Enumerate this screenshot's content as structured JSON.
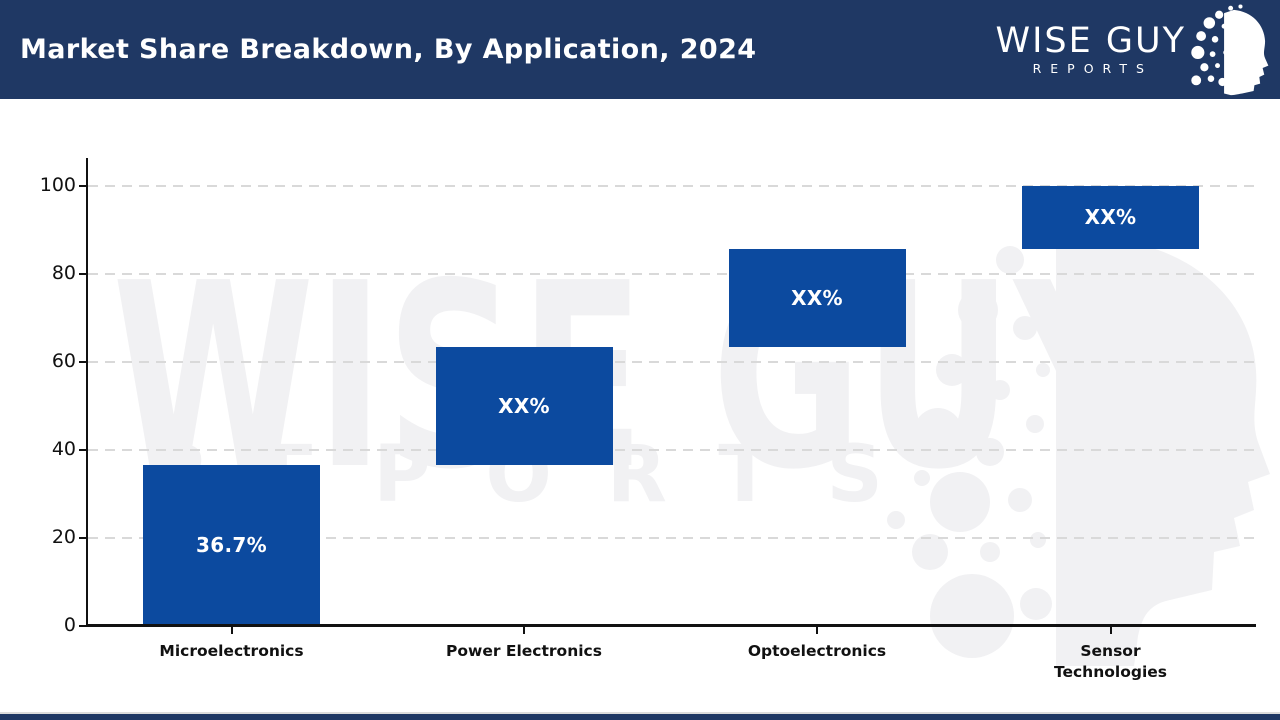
{
  "header": {
    "title": "Market Share Breakdown, By Application, 2024",
    "logo": {
      "line1": "WISE GUY",
      "line2": "REPORTS"
    },
    "bg_color": "#1f3864"
  },
  "watermark": {
    "line1": "WISE GUY",
    "line2": "REPORTS"
  },
  "colors": {
    "accent_navy": "#1f3864",
    "bar_blue": "#0c4a9f",
    "grid_gray": "#d9d9d9",
    "watermark_gray": "#f1f1f3",
    "text_dark": "#111111",
    "bar_label_white": "#ffffff"
  },
  "chart_data": {
    "type": "bar",
    "variant": "waterfall",
    "title": "Market Share Breakdown, By Application, 2024",
    "xlabel": "",
    "ylabel": "",
    "categories": [
      "Microelectronics",
      "Power Electronics",
      "Optoelectronics",
      "Sensor Technologies"
    ],
    "bars": [
      {
        "category": "Microelectronics",
        "start": 0,
        "end": 36.7,
        "label": "36.7%",
        "tick_lines": [
          "Microelectronics"
        ]
      },
      {
        "category": "Power Electronics",
        "start": 36.7,
        "end": 63.3,
        "label": "XX%",
        "tick_lines": [
          "Power Electronics"
        ]
      },
      {
        "category": "Optoelectronics",
        "start": 63.3,
        "end": 85.7,
        "label": "XX%",
        "tick_lines": [
          "Optoelectronics"
        ]
      },
      {
        "category": "Sensor Technologies",
        "start": 85.7,
        "end": 100,
        "label": "XX%",
        "tick_lines": [
          "Sensor",
          "Technologies"
        ]
      }
    ],
    "yticks": [
      0,
      20,
      40,
      60,
      80,
      100
    ],
    "ylim": [
      0,
      105
    ],
    "grid": {
      "axis": "y",
      "style": "dashed",
      "on": true
    },
    "legend": "none",
    "bar_color": "#0c4a9f",
    "bar_label_color": "#ffffff"
  }
}
